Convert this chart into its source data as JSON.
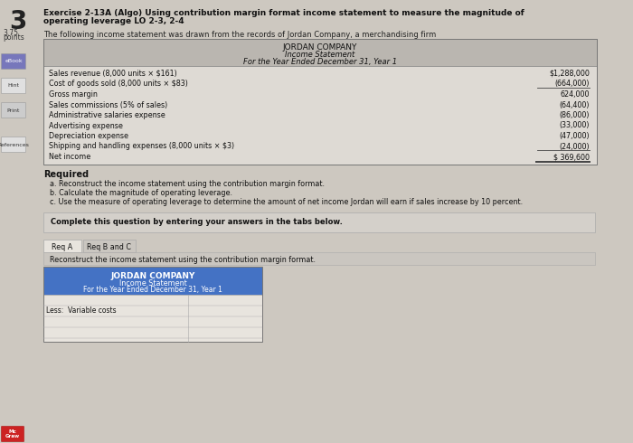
{
  "bg_color": "#cdc8c0",
  "page_num": "3",
  "title_line1": "Exercise 2-13A (Algo) Using contribution margin format income statement to measure the magnitude of",
  "title_line2": "operating leverage LO 2-3, 2-4",
  "points_label1": "3.75",
  "points_label2": "points",
  "intro_text": "The following income statement was drawn from the records of Jordan Company, a merchandising firm",
  "sidebar_icons": [
    "eBook",
    "Hint",
    "Print",
    "References"
  ],
  "table_header1": "JORDAN COMPANY",
  "table_header2": "Income Statement",
  "table_header3": "For the Year Ended December 31, Year 1",
  "table_header_bg": "#bab6b0",
  "table_body_bg": "#dedad4",
  "table_rows": [
    {
      "label": "Sales revenue (8,000 units × $161)",
      "value": "$1,288,000",
      "underline": false,
      "double_underline": false
    },
    {
      "label": "Cost of goods sold (8,000 units × $83)",
      "value": "(664,000)",
      "underline": true,
      "double_underline": false
    },
    {
      "label": "Gross margin",
      "value": "624,000",
      "underline": false,
      "double_underline": false
    },
    {
      "label": "Sales commissions (5% of sales)",
      "value": "(64,400)",
      "underline": false,
      "double_underline": false
    },
    {
      "label": "Administrative salaries expense",
      "value": "(86,000)",
      "underline": false,
      "double_underline": false
    },
    {
      "label": "Advertising expense",
      "value": "(33,000)",
      "underline": false,
      "double_underline": false
    },
    {
      "label": "Depreciation expense",
      "value": "(47,000)",
      "underline": false,
      "double_underline": false
    },
    {
      "label": "Shipping and handling expenses (8,000 units × $3)",
      "value": "(24,000)",
      "underline": true,
      "double_underline": false
    },
    {
      "label": "Net income",
      "value": "$ 369,600",
      "underline": false,
      "double_underline": true
    }
  ],
  "required_label": "Required",
  "req_items": [
    "a. Reconstruct the income statement using the contribution margin format.",
    "b. Calculate the magnitude of operating leverage.",
    "c. Use the measure of operating leverage to determine the amount of net income Jordan will earn if sales increase by 10 percent."
  ],
  "complete_box_text": "Complete this question by entering your answers in the tabs below.",
  "tab1": "Req A",
  "tab2": "Req B and C",
  "reconstruct_text": "Reconstruct the income statement using the contribution margin format.",
  "bottom_table_header1": "JORDAN COMPANY",
  "bottom_table_header2": "Income Statement",
  "bottom_table_header3": "For the Year Ended December 31, Year 1",
  "bottom_table_header_bg": "#4472c4",
  "bottom_row_label": "Less:  Variable costs",
  "logo_text": "Mc\nGraw",
  "sidebar_icon_colors": [
    "#6666aa",
    "#ddddee",
    "#cccccc",
    "#eeeeee"
  ]
}
